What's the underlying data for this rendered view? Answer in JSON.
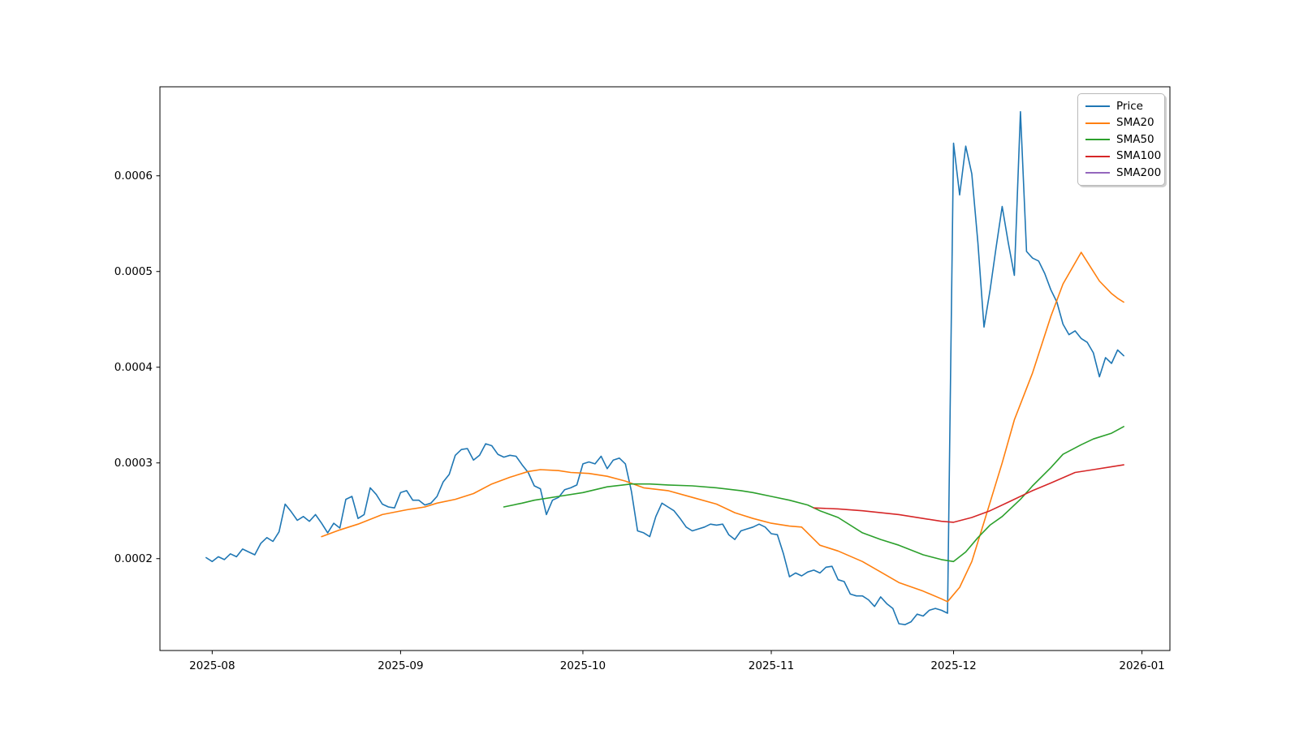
{
  "figure": {
    "background": "#ffffff",
    "frame_color": "#000000"
  },
  "chart_data": {
    "type": "line",
    "title": "",
    "xlabel": "",
    "ylabel": "",
    "grid": false,
    "x_unit": "days since 2025-07-31",
    "xlim": [
      -7.6,
      158.6
    ],
    "ylim": [
      0.000104,
      0.000693
    ],
    "x_ticks": [
      {
        "day": 1,
        "label": "2025-08"
      },
      {
        "day": 32,
        "label": "2025-09"
      },
      {
        "day": 62,
        "label": "2025-10"
      },
      {
        "day": 93,
        "label": "2025-11"
      },
      {
        "day": 123,
        "label": "2025-12"
      },
      {
        "day": 154,
        "label": "2026-01"
      }
    ],
    "y_ticks": [
      {
        "value": 0.0002,
        "label": "0.0002"
      },
      {
        "value": 0.0003,
        "label": "0.0003"
      },
      {
        "value": 0.0004,
        "label": "0.0004"
      },
      {
        "value": 0.0005,
        "label": "0.0005"
      },
      {
        "value": 0.0006,
        "label": "0.0006"
      }
    ],
    "legend": {
      "position": "upper right",
      "entries": [
        "Price",
        "SMA20",
        "SMA50",
        "SMA100",
        "SMA200"
      ]
    },
    "series": [
      {
        "name": "Price",
        "color": "#1f77b4",
        "start_day": 0,
        "values": [
          0.000201,
          0.000197,
          0.000202,
          0.000199,
          0.000205,
          0.000202,
          0.00021,
          0.000207,
          0.000204,
          0.000216,
          0.000222,
          0.000218,
          0.000228,
          0.000257,
          0.000249,
          0.00024,
          0.000244,
          0.000239,
          0.000246,
          0.000237,
          0.000227,
          0.000237,
          0.000232,
          0.000262,
          0.000265,
          0.000242,
          0.000246,
          0.000274,
          0.000267,
          0.000257,
          0.000254,
          0.000253,
          0.000269,
          0.000271,
          0.000261,
          0.000261,
          0.000256,
          0.000258,
          0.000265,
          0.00028,
          0.000288,
          0.000308,
          0.000314,
          0.000315,
          0.000303,
          0.000308,
          0.00032,
          0.000318,
          0.000309,
          0.000306,
          0.000308,
          0.000307,
          0.000298,
          0.00029,
          0.000276,
          0.000273,
          0.000246,
          0.000261,
          0.000264,
          0.000272,
          0.000274,
          0.000277,
          0.000299,
          0.000301,
          0.000299,
          0.000307,
          0.000294,
          0.000303,
          0.000305,
          0.000299,
          0.00027,
          0.000229,
          0.000227,
          0.000223,
          0.000244,
          0.000258,
          0.000254,
          0.00025,
          0.000242,
          0.000233,
          0.000229,
          0.000231,
          0.000233,
          0.000236,
          0.000235,
          0.000236,
          0.000225,
          0.00022,
          0.000229,
          0.000231,
          0.000233,
          0.000236,
          0.000233,
          0.000226,
          0.000225,
          0.000205,
          0.000181,
          0.000185,
          0.000182,
          0.000186,
          0.000188,
          0.000185,
          0.000191,
          0.000192,
          0.000178,
          0.000176,
          0.000163,
          0.000161,
          0.000161,
          0.000157,
          0.00015,
          0.00016,
          0.000153,
          0.000148,
          0.000132,
          0.000131,
          0.000134,
          0.000142,
          0.00014,
          0.000146,
          0.000148,
          0.000146,
          0.000143,
          0.000634,
          0.00058,
          0.000631,
          0.000602,
          0.00053,
          0.000442,
          0.00048,
          0.000525,
          0.000568,
          0.00053,
          0.000496,
          0.000667,
          0.000521,
          0.000514,
          0.000511,
          0.000498,
          0.000481,
          0.000468,
          0.000445,
          0.000434,
          0.000438,
          0.00043,
          0.000426,
          0.000415,
          0.00039,
          0.00041,
          0.000404,
          0.000418,
          0.000412
        ]
      },
      {
        "name": "SMA20",
        "color": "#ff7f0e",
        "points": [
          [
            19,
            0.000223
          ],
          [
            22,
            0.00023
          ],
          [
            25,
            0.000236
          ],
          [
            29,
            0.000246
          ],
          [
            33,
            0.000251
          ],
          [
            36,
            0.000254
          ],
          [
            38,
            0.000258
          ],
          [
            41,
            0.000262
          ],
          [
            44,
            0.000268
          ],
          [
            47,
            0.000278
          ],
          [
            50,
            0.000285
          ],
          [
            53,
            0.000291
          ],
          [
            55,
            0.000293
          ],
          [
            58,
            0.000292
          ],
          [
            60,
            0.00029
          ],
          [
            63,
            0.000289
          ],
          [
            66,
            0.000286
          ],
          [
            69,
            0.000281
          ],
          [
            72,
            0.000274
          ],
          [
            76,
            0.000271
          ],
          [
            80,
            0.000264
          ],
          [
            84,
            0.000257
          ],
          [
            87,
            0.000248
          ],
          [
            90,
            0.000242
          ],
          [
            93,
            0.000237
          ],
          [
            96,
            0.000234
          ],
          [
            98,
            0.000233
          ],
          [
            101,
            0.000214
          ],
          [
            104,
            0.000208
          ],
          [
            108,
            0.000197
          ],
          [
            111,
            0.000186
          ],
          [
            114,
            0.000175
          ],
          [
            118,
            0.000166
          ],
          [
            121,
            0.000158
          ],
          [
            122,
            0.000155
          ],
          [
            124,
            0.00017
          ],
          [
            126,
            0.000197
          ],
          [
            128,
            0.000238
          ],
          [
            131,
            0.0003
          ],
          [
            133,
            0.000345
          ],
          [
            136,
            0.000394
          ],
          [
            139,
            0.000453
          ],
          [
            141,
            0.000487
          ],
          [
            144,
            0.00052
          ],
          [
            146,
            0.0005
          ],
          [
            147,
            0.00049
          ],
          [
            149,
            0.000477
          ],
          [
            150,
            0.000472
          ],
          [
            151,
            0.000468
          ]
        ]
      },
      {
        "name": "SMA50",
        "color": "#2ca02c",
        "points": [
          [
            49,
            0.000254
          ],
          [
            52,
            0.000258
          ],
          [
            54,
            0.000261
          ],
          [
            58,
            0.000265
          ],
          [
            62,
            0.000269
          ],
          [
            66,
            0.000275
          ],
          [
            70,
            0.000278
          ],
          [
            73,
            0.000278
          ],
          [
            76,
            0.000277
          ],
          [
            80,
            0.000276
          ],
          [
            84,
            0.000274
          ],
          [
            88,
            0.000271
          ],
          [
            90,
            0.000269
          ],
          [
            93,
            0.000265
          ],
          [
            96,
            0.000261
          ],
          [
            99,
            0.000256
          ],
          [
            101,
            0.00025
          ],
          [
            104,
            0.000243
          ],
          [
            108,
            0.000227
          ],
          [
            111,
            0.00022
          ],
          [
            114,
            0.000214
          ],
          [
            118,
            0.000204
          ],
          [
            121,
            0.000199
          ],
          [
            123,
            0.000197
          ],
          [
            125,
            0.000207
          ],
          [
            127,
            0.000222
          ],
          [
            129,
            0.000235
          ],
          [
            131,
            0.000244
          ],
          [
            134,
            0.000262
          ],
          [
            136,
            0.000276
          ],
          [
            139,
            0.000295
          ],
          [
            141,
            0.000309
          ],
          [
            144,
            0.000319
          ],
          [
            146,
            0.000325
          ],
          [
            149,
            0.000331
          ],
          [
            151,
            0.000338
          ]
        ]
      },
      {
        "name": "SMA100",
        "color": "#d62728",
        "points": [
          [
            100,
            0.000253
          ],
          [
            104,
            0.000252
          ],
          [
            108,
            0.00025
          ],
          [
            111,
            0.000248
          ],
          [
            114,
            0.000246
          ],
          [
            118,
            0.000242
          ],
          [
            121,
            0.000239
          ],
          [
            123,
            0.000238
          ],
          [
            126,
            0.000243
          ],
          [
            129,
            0.00025
          ],
          [
            132,
            0.000259
          ],
          [
            136,
            0.000271
          ],
          [
            139,
            0.000279
          ],
          [
            143,
            0.00029
          ],
          [
            146,
            0.000293
          ],
          [
            149,
            0.000296
          ],
          [
            151,
            0.000298
          ]
        ]
      },
      {
        "name": "SMA200",
        "color": "#9467bd",
        "points": []
      }
    ]
  }
}
